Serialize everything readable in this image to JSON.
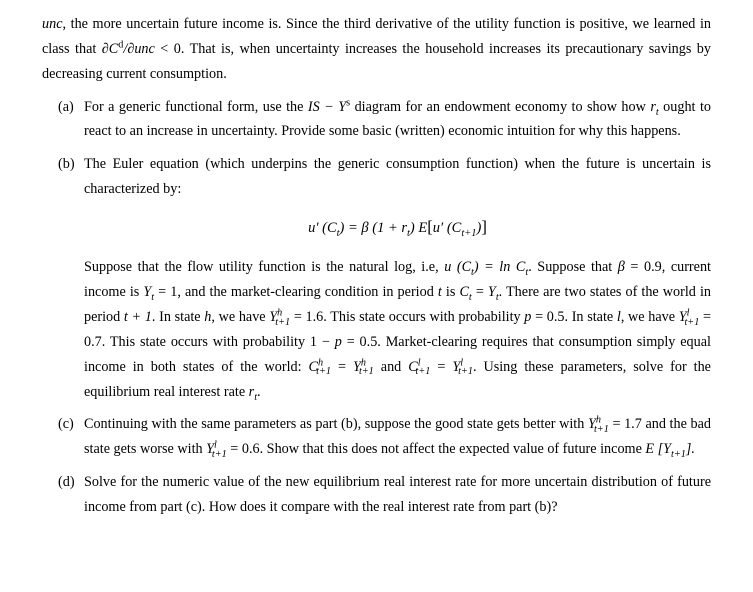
{
  "intro": {
    "p1_a": "unc",
    "p1_b": ", the more uncertain future income is. Since the third derivative of the utility function is positive, we learned in class that ",
    "p1_c": "∂C",
    "p1_d": "/∂unc",
    "p1_e": " < 0. That is, when uncertainty increases the household increases its precautionary savings by decreasing current consumption."
  },
  "items": {
    "a": {
      "label": "(a)",
      "t1": "For a generic functional form, use the ",
      "t2": "IS − Y",
      "t3": " diagram for an endowment economy to show how ",
      "t4": "r",
      "t5": " ought to react to an increase in uncertainty. Provide some basic (written) economic intuition for why this happens."
    },
    "b": {
      "label": "(b)",
      "t1": "The Euler equation (which underpins the generic consumption function) when the future is uncertain is characterized by:",
      "eq_a": "u′ (C",
      "eq_b": ") = β (1 + r",
      "eq_c": ") E",
      "eq_d": "[",
      "eq_e": "u′ (C",
      "eq_f": ")",
      "eq_g": "]",
      "p2a": "Suppose that the flow utility function is the natural log, i.e, ",
      "p2b": "u (C",
      "p2c": ") = ln C",
      "p2d": ". Suppose that ",
      "p2e": "β",
      "p2f": " = 0.9, current income is ",
      "p2g": "Y",
      "p2h": " = 1, and the market-clearing condition in period ",
      "p2i": "t",
      "p2j": " is ",
      "p2k": "C",
      "p2l": " = ",
      "p2m": "Y",
      "p2n": ". There are two states of the world in period ",
      "p2o": "t + 1",
      "p2p": ". In state ",
      "p2q": "h",
      "p2r": ", we have ",
      "p2s": "Y",
      "p2t": " = 1.6. This state occurs with probability ",
      "p2u": "p",
      "p2v": " = 0.5. In state ",
      "p2w": "l",
      "p2x": ", we have ",
      "p2y": "Y",
      "p2z": " = 0.7. This state occurs with probability 1 − ",
      "p2aa": "p",
      "p2ab": " = 0.5. Market-clearing requires that consumption simply equal income in both states of the world: ",
      "p2ac": "C",
      "p2ad": " = ",
      "p2ae": "Y",
      "p2af": " and ",
      "p2ag": "C",
      "p2ah": " = ",
      "p2ai": "Y",
      "p2aj": ". Using these parameters, solve for the equilibrium real interest rate ",
      "p2ak": "r",
      "p2al": "."
    },
    "c": {
      "label": "(c)",
      "t1": "Continuing with the same parameters as part (b), suppose the good state gets better with ",
      "t2": "Y",
      "t3": " = 1.7 and the bad state gets worse with ",
      "t4": "Y",
      "t5": " = 0.6. Show that this does not affect the expected value of future income ",
      "t6": "E [Y",
      "t7": "]."
    },
    "d": {
      "label": "(d)",
      "t1": "Solve for the numeric value of the new equilibrium real interest rate for more uncertain distribution of future income from part (c). How does it compare with the real interest rate from part (b)?"
    }
  },
  "sym": {
    "d": "d",
    "s": "s",
    "t": "t",
    "tp1": "t+1",
    "h": "h",
    "l": "l"
  }
}
